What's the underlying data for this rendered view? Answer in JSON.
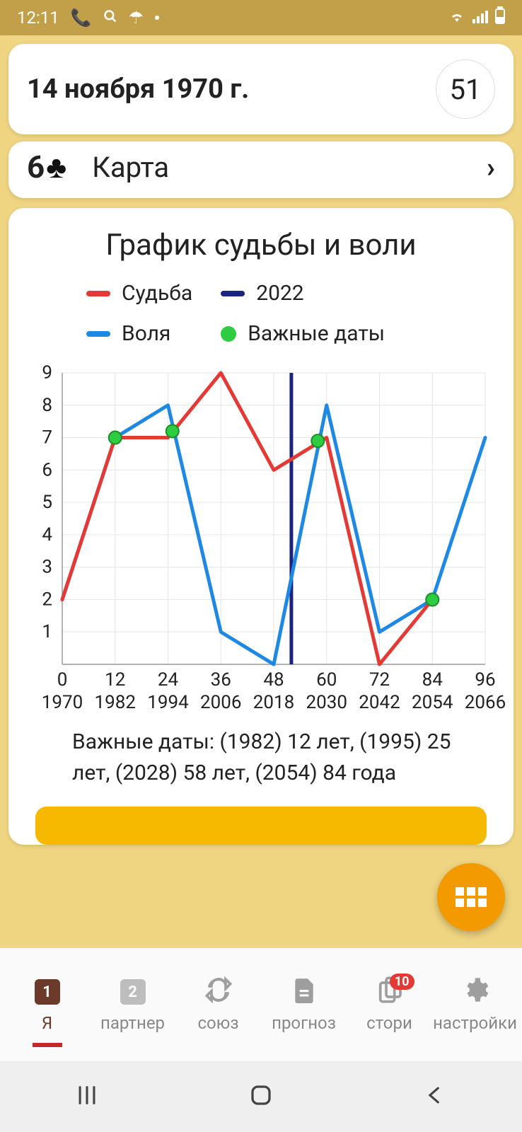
{
  "status": {
    "time": "12:11",
    "icons_left": [
      "phone-icon",
      "search-icon",
      "umbrella-icon",
      "dot-icon"
    ],
    "icons_right": [
      "wifi-icon",
      "signal-icon",
      "battery-icon"
    ]
  },
  "header": {
    "date": "14 ноября 1970 г.",
    "age": "51"
  },
  "card_row": {
    "value": "6",
    "suit": "♣",
    "label": "Карта",
    "chevron": "›"
  },
  "chart": {
    "title": "График судьбы и воли",
    "legend": {
      "sudba": {
        "label": "Судьба",
        "color": "#e53935",
        "type": "line"
      },
      "year": {
        "label": "2022",
        "color": "#1a237e",
        "type": "line"
      },
      "volya": {
        "label": "Воля",
        "color": "#1e88e5",
        "type": "line"
      },
      "dates": {
        "label": "Важные даты",
        "color": "#2ecc40",
        "type": "dot"
      }
    },
    "plot": {
      "x_domain": [
        0,
        96
      ],
      "y_domain": [
        0,
        9
      ],
      "x_ticks": [
        0,
        12,
        24,
        36,
        48,
        60,
        72,
        84,
        96
      ],
      "x_years": [
        1970,
        1982,
        1994,
        2006,
        2018,
        2030,
        2042,
        2054,
        2066
      ],
      "y_ticks": [
        1,
        2,
        3,
        4,
        5,
        6,
        7,
        8,
        9
      ],
      "grid_color": "#e6e6e6",
      "axis_color": "#999999",
      "background": "#ffffff",
      "line_width": 5,
      "marker_radius": 9,
      "current_year_x": 52,
      "series": {
        "sudba": {
          "color": "#e53935",
          "points": [
            [
              0,
              2
            ],
            [
              12,
              7
            ],
            [
              24,
              7
            ],
            [
              36,
              9
            ],
            [
              48,
              6
            ],
            [
              60,
              7
            ],
            [
              72,
              0
            ],
            [
              84,
              2
            ]
          ]
        },
        "volya": {
          "color": "#1e88e5",
          "points": [
            [
              0,
              2
            ],
            [
              12,
              7
            ],
            [
              24,
              8
            ],
            [
              36,
              1
            ],
            [
              48,
              0
            ],
            [
              60,
              8
            ],
            [
              72,
              1
            ],
            [
              84,
              2
            ],
            [
              96,
              7
            ]
          ]
        }
      },
      "important_points": {
        "color": "#2ecc40",
        "border": "#1a8f2a",
        "points": [
          [
            12,
            7
          ],
          [
            25,
            7.2
          ],
          [
            58,
            6.9
          ],
          [
            84,
            2
          ]
        ]
      },
      "current_line_color": "#1a237e"
    },
    "dates_text": "Важные даты: (1982) 12 лет, (1995) 25 лет, (2028) 58 лет, (2054) 84 года"
  },
  "fab": {
    "color": "#f39a00"
  },
  "bottom_nav": {
    "items": [
      {
        "key": "me",
        "label": "Я",
        "icon": "num-1",
        "active": true,
        "icon_bg": "#6b3a2a"
      },
      {
        "key": "partner",
        "label": "партнер",
        "icon": "num-2",
        "icon_bg": "#bdbdbd"
      },
      {
        "key": "union",
        "label": "союз",
        "icon": "sync"
      },
      {
        "key": "forecast",
        "label": "прогноз",
        "icon": "doc"
      },
      {
        "key": "stories",
        "label": "стори",
        "icon": "stories",
        "badge": "10"
      },
      {
        "key": "settings",
        "label": "настройки",
        "icon": "gear"
      }
    ]
  }
}
